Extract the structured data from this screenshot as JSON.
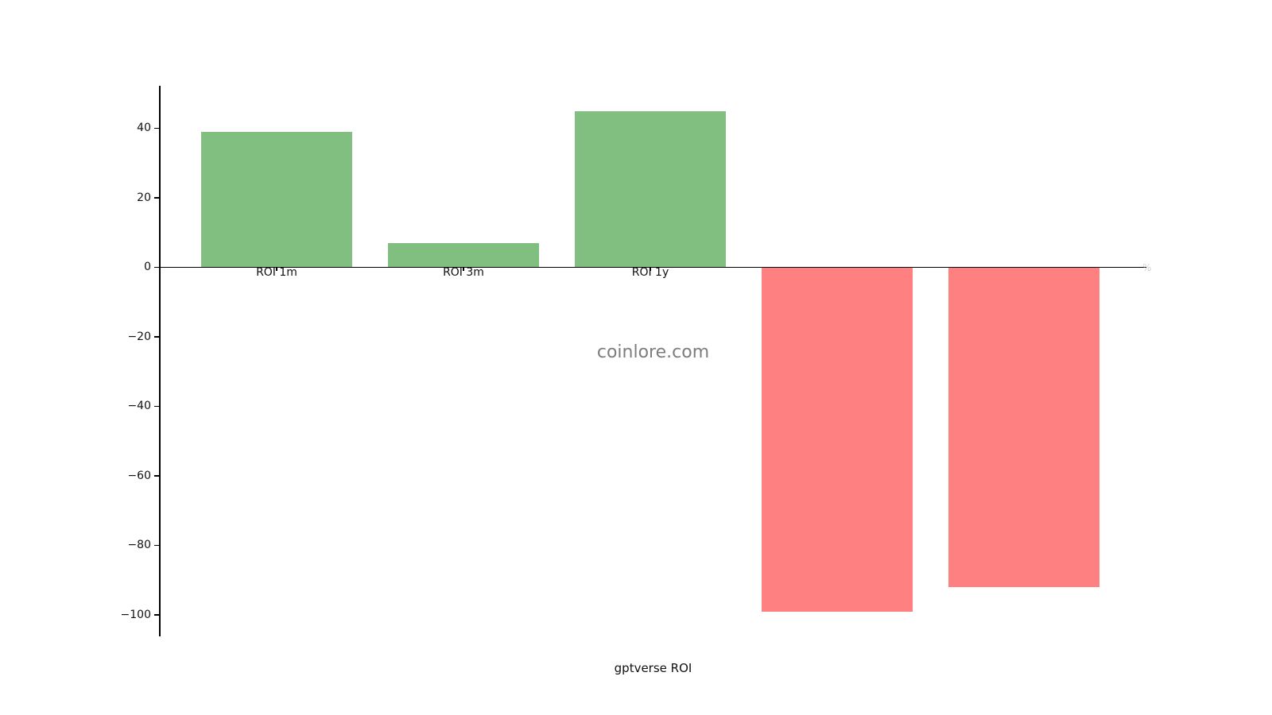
{
  "page": {
    "background": "#ffffff"
  },
  "chart_data": {
    "type": "bar",
    "title": "",
    "xlabel": "gptverse ROI",
    "ylabel": "",
    "categories": [
      "ROI 1m",
      "ROI 3m",
      "ROI 1y",
      "",
      ""
    ],
    "values": [
      39,
      7,
      45,
      -99,
      -92
    ],
    "bar_colors": [
      "#80bf80",
      "#80bf80",
      "#80bf80",
      "#ff8080",
      "#ff8080"
    ],
    "positive_color": "#80bf80",
    "negative_color": "#ff8080",
    "ylim": [
      -106.2,
      52.2
    ],
    "yticks": [
      {
        "v": 40,
        "label": "40"
      },
      {
        "v": 20,
        "label": "20"
      },
      {
        "v": 0,
        "label": "0"
      },
      {
        "v": -20,
        "label": "−20"
      },
      {
        "v": -40,
        "label": "−40"
      },
      {
        "v": -60,
        "label": "−60"
      },
      {
        "v": -80,
        "label": "−80"
      },
      {
        "v": -100,
        "label": "−100"
      }
    ],
    "grid": false,
    "legend": "none",
    "axis_color": "#000000",
    "text_color": "#111111"
  },
  "watermark": {
    "text": "coinlore.com",
    "color": "#7d7d7d"
  },
  "axis_end_mark": {
    "text": "%",
    "color": "#c9c9c9"
  }
}
